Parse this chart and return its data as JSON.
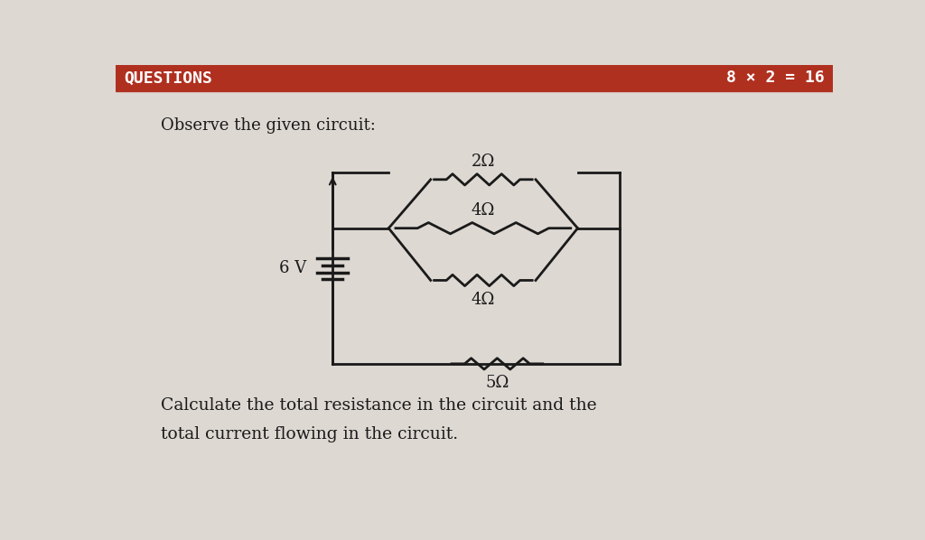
{
  "bg_color": "#ddd8d2",
  "header_color": "#b03020",
  "header_text": "QUESTIONS",
  "header_right_text": "8 × 2 = 16",
  "question_text": "Observe the given circuit:",
  "footer_line1": "Calculate the total resistance in the circuit and the",
  "footer_line2": "total current flowing in the circuit.",
  "r1_label": "2Ω",
  "r2_label": "4Ω",
  "r3_label": "4Ω",
  "r4_label": "5Ω",
  "battery_label": "6 V",
  "line_color": "#1a1a1a",
  "text_color": "#1a1a1a",
  "white_text": "#ffffff"
}
